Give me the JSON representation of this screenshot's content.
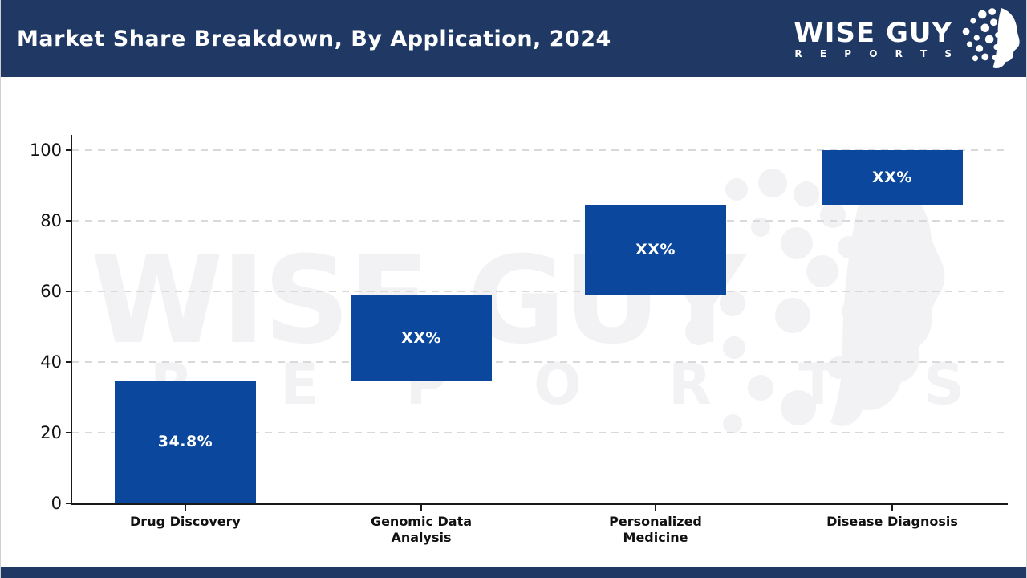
{
  "header": {
    "title": "Market Share Breakdown, By Application, 2024",
    "logo_line1": "WISE GUY",
    "logo_line2": "R E P O R T S"
  },
  "watermark": {
    "line1": "WISE GUY",
    "line2": "R E P O R T S"
  },
  "chart_data": {
    "type": "bar",
    "subtype": "floating-waterfall",
    "title": "Market Share Breakdown, By Application, 2024",
    "categories": [
      "Drug Discovery",
      "Genomic Data Analysis",
      "Personalized Medicine",
      "Disease Diagnosis"
    ],
    "category_label_lines": [
      [
        "Drug Discovery"
      ],
      [
        "Genomic Data",
        "Analysis"
      ],
      [
        "Personalized",
        "Medicine"
      ],
      [
        "Disease Diagnosis"
      ]
    ],
    "segments": [
      {
        "category": "Drug Discovery",
        "start": 0,
        "end": 34.8,
        "label": "34.8%"
      },
      {
        "category": "Genomic Data Analysis",
        "start": 34.8,
        "end": 59,
        "label": "XX%"
      },
      {
        "category": "Personalized Medicine",
        "start": 59,
        "end": 84.5,
        "label": "XX%"
      },
      {
        "category": "Disease Diagnosis",
        "start": 84.5,
        "end": 100,
        "label": "XX%"
      }
    ],
    "y_ticks": [
      0,
      20,
      40,
      60,
      80,
      100
    ],
    "ylim": [
      0,
      105
    ],
    "xlabel": "",
    "ylabel": "",
    "legend": null,
    "grid": "horizontal-dashed",
    "colors": {
      "bar": "#0b479c",
      "header_bg": "#1f3864",
      "footer_bg": "#1f3864",
      "grid": "#d9d9d9",
      "axis": "#1a1a1a",
      "bar_label_text": "#ffffff",
      "tick_text": "#111111",
      "watermark": "#f2f2f4"
    }
  }
}
